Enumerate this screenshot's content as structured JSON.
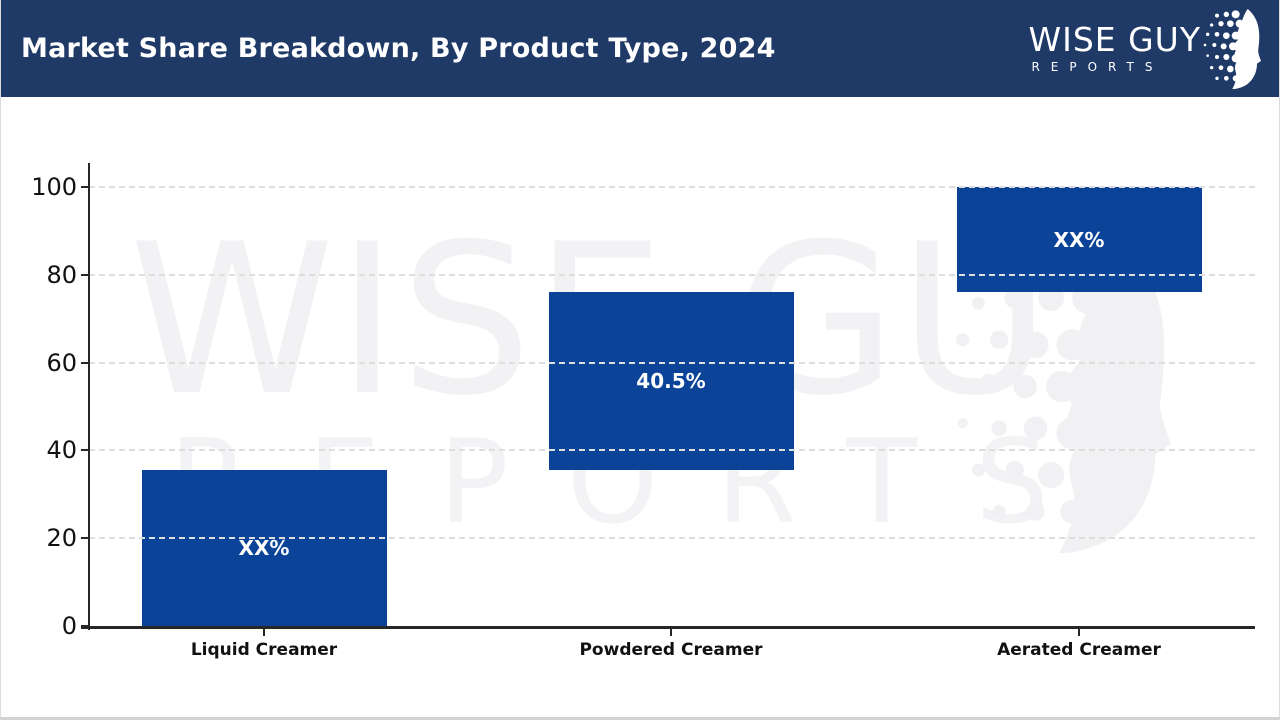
{
  "header": {
    "title": "Market Share Breakdown, By Product Type, 2024",
    "logo": {
      "line1": "WISE GUY",
      "line2": "REPORTS"
    }
  },
  "watermark": {
    "line1": "WISE GUY",
    "line2": "REPORTS"
  },
  "colors": {
    "header_bg": "#203a68",
    "bar": "#0a4397",
    "bar_label": "#ffffff",
    "axis": "#262626",
    "gridline": "#dedede",
    "watermark": "#f2f2f5"
  },
  "chart_data": {
    "type": "bar",
    "variant": "waterfall",
    "title": "Market Share Breakdown, By Product Type, 2024",
    "xlabel": "",
    "ylabel": "",
    "categories": [
      "Liquid Creamer",
      "Powdered Creamer",
      "Aerated Creamer"
    ],
    "segments": [
      {
        "category": "Liquid Creamer",
        "start": 0,
        "end": 35.5,
        "label": "XX%"
      },
      {
        "category": "Powdered Creamer",
        "start": 35.5,
        "end": 76,
        "label": "40.5%"
      },
      {
        "category": "Aerated Creamer",
        "start": 76,
        "end": 100,
        "label": "XX%"
      }
    ],
    "yticks": [
      0,
      20,
      40,
      60,
      80,
      100
    ],
    "ylim": [
      0,
      105
    ],
    "grid": "horizontal-dashed-over-bars",
    "legend": "none"
  }
}
